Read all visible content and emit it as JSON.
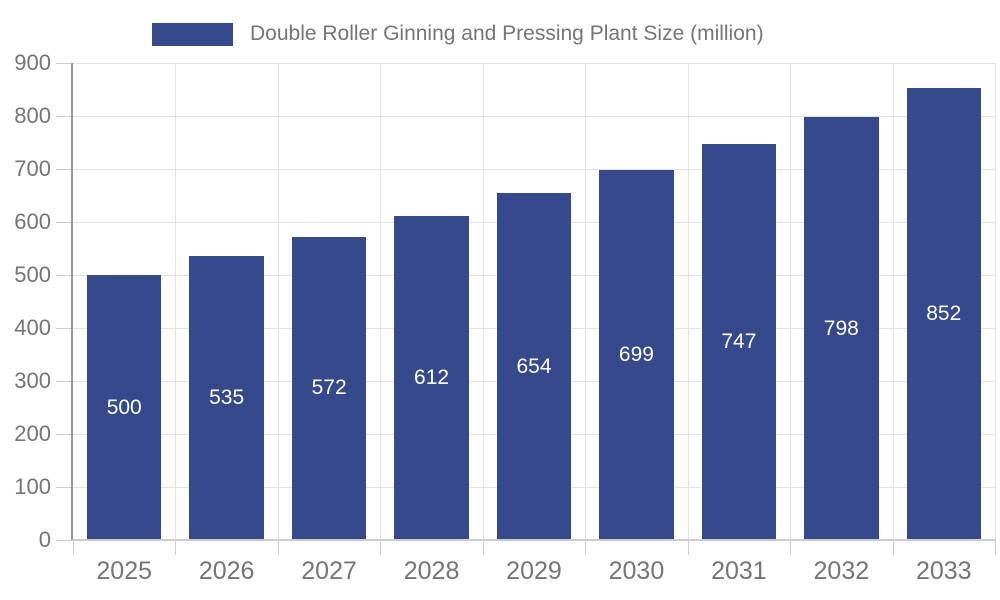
{
  "chart_data": {
    "type": "bar",
    "title": "Double Roller Ginning and Pressing Plant Size (million)",
    "categories": [
      "2025",
      "2026",
      "2027",
      "2028",
      "2029",
      "2030",
      "2031",
      "2032",
      "2033"
    ],
    "values": [
      500,
      535,
      572,
      612,
      654,
      699,
      747,
      798,
      852
    ],
    "xlabel": "",
    "ylabel": "",
    "ylim": [
      0,
      900
    ],
    "yticks": [
      0,
      100,
      200,
      300,
      400,
      500,
      600,
      700,
      800,
      900
    ],
    "grid": true,
    "legend_position": "top",
    "value_label_position": "inside-center",
    "colors": {
      "bar": "#35498c",
      "grid": "#e3e3e3",
      "tick": "#cccccc",
      "y_axis": "#999999",
      "x_axis": "#cccccc",
      "text": "#757575",
      "value_text": "#ffffff",
      "background": "#ffffff"
    }
  }
}
